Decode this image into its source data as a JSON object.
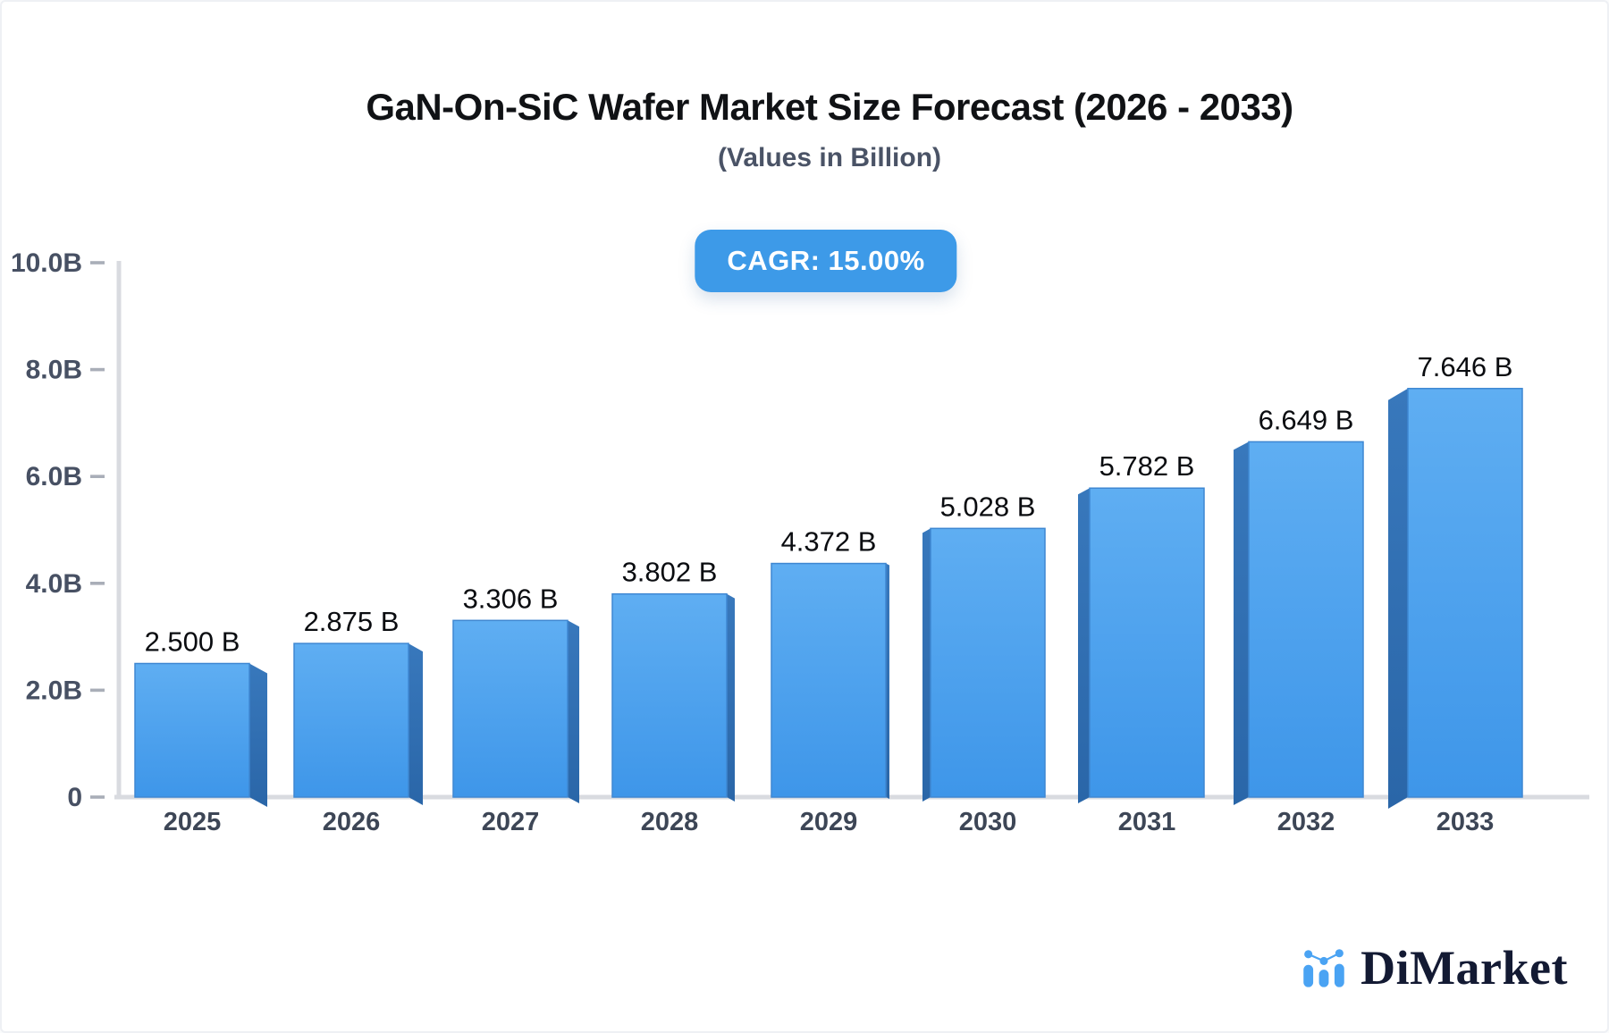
{
  "header": {
    "title": "GaN-On-SiC Wafer Market Size Forecast (2026 - 2033)",
    "subtitle": "(Values in Billion)"
  },
  "badge": {
    "label": "CAGR: 15.00%",
    "bg_color": "#3D9AE8",
    "text_color": "#FFFFFF"
  },
  "chart_data": {
    "type": "bar",
    "title": "GaN-On-SiC Wafer Market Size Forecast (2026 - 2033)",
    "subtitle": "(Values in Billion)",
    "categories": [
      "2025",
      "2026",
      "2027",
      "2028",
      "2029",
      "2030",
      "2031",
      "2032",
      "2033"
    ],
    "values": [
      2.5,
      2.875,
      3.306,
      3.802,
      4.372,
      5.028,
      5.782,
      6.649,
      7.646
    ],
    "bar_labels": [
      "2.500 B",
      "2.875 B",
      "3.306 B",
      "3.802 B",
      "4.372 B",
      "5.028 B",
      "5.782 B",
      "6.649 B",
      "7.646 B"
    ],
    "xlabel": "",
    "ylabel": "",
    "ylim": [
      0,
      10
    ],
    "yticks": [
      0,
      2,
      4,
      6,
      8,
      10
    ],
    "ytick_labels": [
      "0",
      "2.0B",
      "4.0B",
      "6.0B",
      "8.0B",
      "10.0B"
    ],
    "grid": false,
    "legend_position": "none",
    "bar_style": "3d-perspective",
    "colors": {
      "bar_face_top": "#5FAEF2",
      "bar_face_bottom": "#3E96E9",
      "bar_face_edge": "#3E87D2",
      "bar_side_top": "#3878BC",
      "bar_side_bottom": "#2A66A8",
      "axis_line": "#D9DBE0",
      "tick_mark": "#A9AEB8",
      "ytick_label": "#475063",
      "xtick_label": "#3D4656",
      "value_label": "#0A0C10"
    }
  },
  "logo": {
    "text": "DiMarket",
    "icon": "bar-chart-logo-icon",
    "icon_color": "#4AA3F3",
    "text_color": "#131A33"
  }
}
